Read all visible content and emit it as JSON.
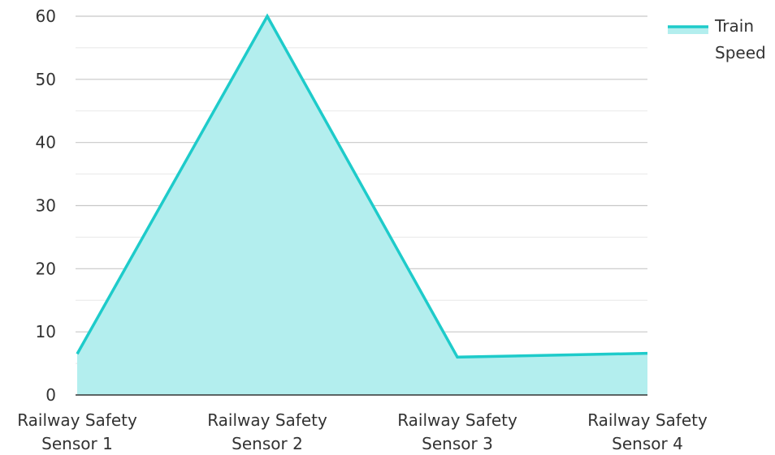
{
  "chart_data": {
    "type": "area",
    "categories": [
      [
        "Railway Safety",
        "Sensor 1"
      ],
      [
        "Railway Safety",
        "Sensor 2"
      ],
      [
        "Railway Safety",
        "Sensor 3"
      ],
      [
        "Railway Safety",
        "Sensor 4"
      ]
    ],
    "series": [
      {
        "name": "Train Speed",
        "values": [
          6.5,
          60,
          6,
          6.6
        ]
      }
    ],
    "ylim": [
      0,
      60
    ],
    "yticks": [
      0,
      10,
      20,
      30,
      40,
      50,
      60
    ],
    "grid": true,
    "legend": {
      "placement": "top-right",
      "lines": [
        "Train",
        "Speed"
      ]
    },
    "colors": {
      "line": "#1ecbca",
      "fill": "#b3eeee",
      "grid_major": "#c8c8c8",
      "grid_minor": "#e8e8e8",
      "axis": "#333333"
    }
  }
}
